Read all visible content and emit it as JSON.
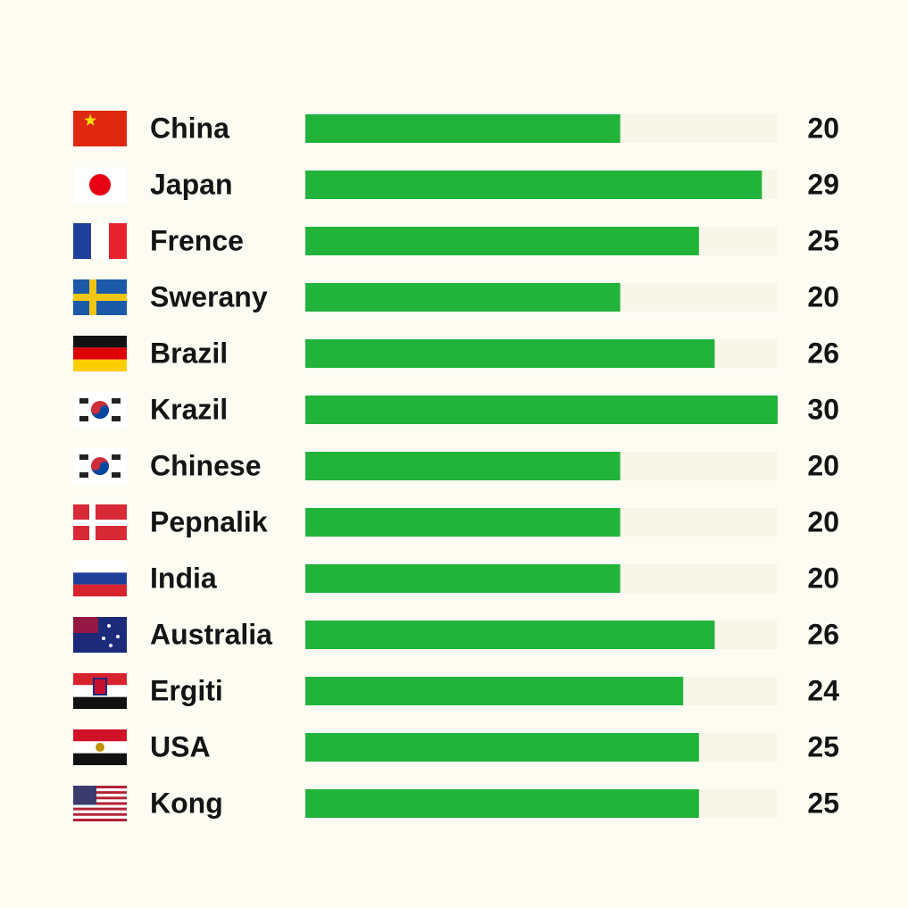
{
  "chart_data": {
    "type": "bar",
    "orientation": "horizontal",
    "color": "#22b33a",
    "categories": [
      "China",
      "Japan",
      "Frence",
      "Swerany",
      "Brazil",
      "Krazil",
      "Chinese",
      "Pepnalik",
      "India",
      "Australia",
      "Ergiti",
      "USA",
      "Kong"
    ],
    "values": [
      20,
      29,
      25,
      20,
      26,
      30,
      20,
      20,
      20,
      26,
      24,
      25,
      25
    ]
  }
}
